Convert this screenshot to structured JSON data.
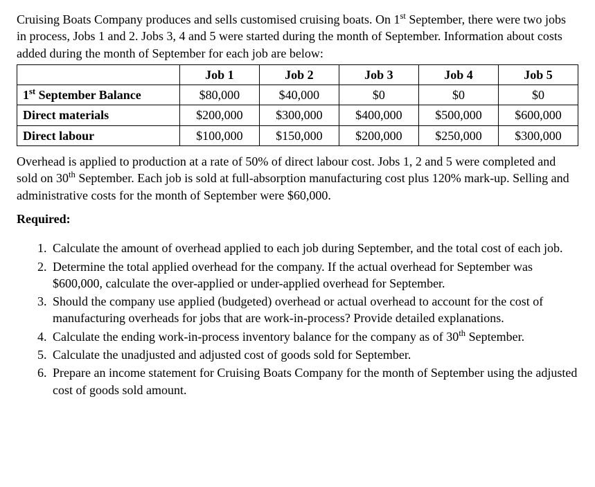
{
  "intro": {
    "p1_a": "Cruising Boats Company produces and sells customised cruising boats. On 1",
    "p1_sup": "st",
    "p1_b": " September, there were two jobs in process, Jobs 1 and 2. Jobs 3, 4 and 5 were started during the month of September. Information about costs added during the month of September for each job are below:"
  },
  "table": {
    "headers": [
      "",
      "Job 1",
      "Job 2",
      "Job 3",
      "Job 4",
      "Job 5"
    ],
    "row1_label_a": "1",
    "row1_label_sup": "st",
    "row1_label_b": " September Balance",
    "row1": [
      "$80,000",
      "$40,000",
      "$0",
      "$0",
      "$0"
    ],
    "row2_label": "Direct materials",
    "row2": [
      "$200,000",
      "$300,000",
      "$400,000",
      "$500,000",
      "$600,000"
    ],
    "row3_label": "Direct labour",
    "row3": [
      "$100,000",
      "$150,000",
      "$200,000",
      "$250,000",
      "$300,000"
    ]
  },
  "mid": {
    "p_a": "Overhead is applied to production at a rate of 50% of direct labour cost. Jobs 1, 2 and 5 were completed and sold on 30",
    "p_sup": "th",
    "p_b": " September. Each job is sold at full-absorption manufacturing cost plus 120% mark-up. Selling and administrative costs for the month of September were $60,000."
  },
  "required": {
    "label": "Required:",
    "items": {
      "1": "Calculate the amount of overhead applied to each job during September, and the total cost of each job.",
      "2": "Determine the total applied overhead for the company. If the actual overhead for September was $600,000, calculate the over-applied or under-applied overhead for September.",
      "3": "Should the company use applied (budgeted) overhead or actual overhead to account for the cost of manufacturing overheads for jobs that are work-in-process? Provide detailed explanations.",
      "4_a": "Calculate the ending work-in-process inventory balance for the company as of 30",
      "4_sup": "th",
      "4_b": " September.",
      "5": "Calculate the unadjusted and adjusted cost of goods sold for September.",
      "6": "Prepare an income statement for Cruising Boats Company for the month of September using the adjusted cost of goods sold amount."
    }
  }
}
